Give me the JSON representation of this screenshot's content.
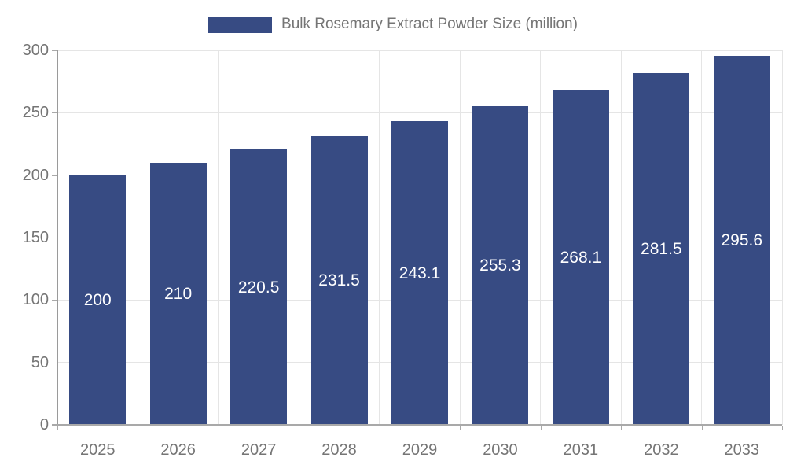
{
  "legend": {
    "label": "Bulk Rosemary Extract Powder Size (million)"
  },
  "colors": {
    "bar": "#374b83",
    "axis_text": "#757575",
    "gridline": "#e5e5e5",
    "axis_line": "#a9a9a9",
    "bar_label_text": "#ffffff",
    "background": "#ffffff"
  },
  "chart_data": {
    "type": "bar",
    "title": "Bulk Rosemary Extract Powder Size (million)",
    "categories": [
      "2025",
      "2026",
      "2027",
      "2028",
      "2029",
      "2030",
      "2031",
      "2032",
      "2033"
    ],
    "values": [
      200,
      210,
      220.5,
      231.5,
      243.1,
      255.3,
      268.1,
      281.5,
      295.6
    ],
    "bar_labels": [
      "200",
      "210",
      "220.5",
      "231.5",
      "243.1",
      "255.3",
      "268.1",
      "281.5",
      "295.6"
    ],
    "xlabel": "",
    "ylabel": "",
    "ylim": [
      0,
      300
    ],
    "yticks": [
      0,
      50,
      100,
      150,
      200,
      250,
      300
    ],
    "grid": true,
    "legend_position": "top-center",
    "bar_label_position": "inside-center"
  }
}
